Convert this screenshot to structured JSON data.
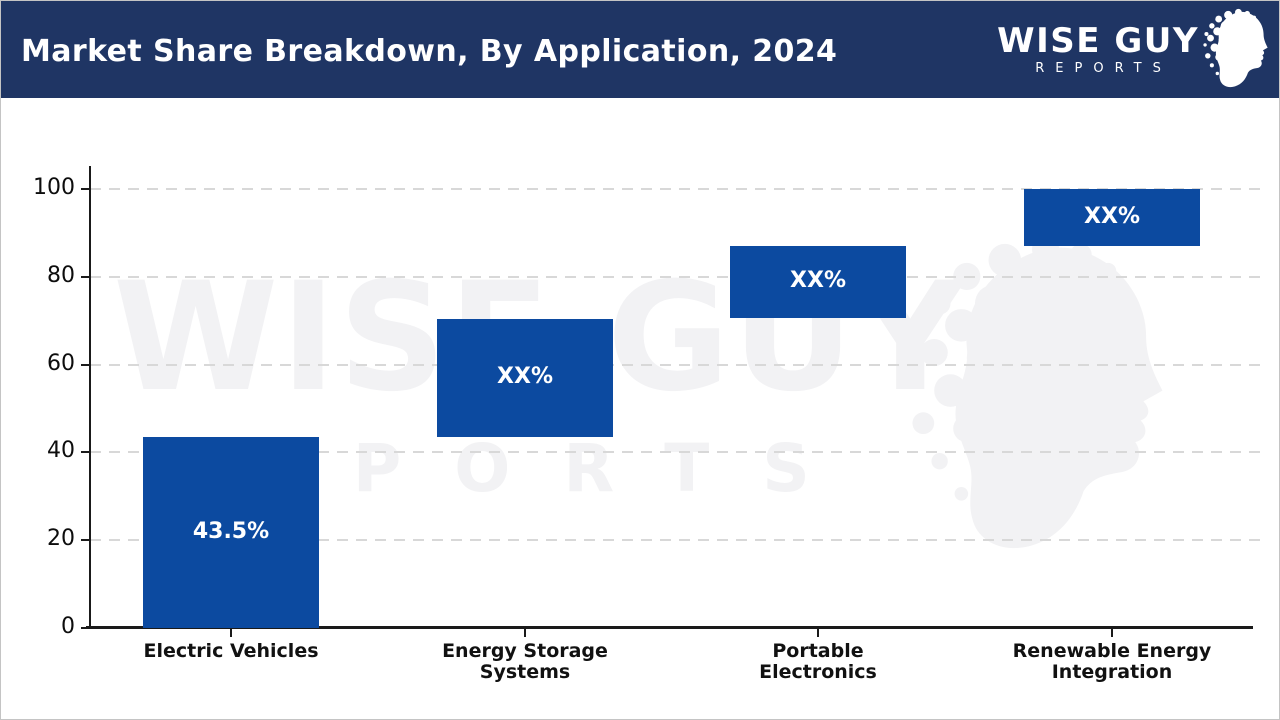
{
  "header": {
    "title": "Market Share Breakdown, By Application, 2024",
    "bg_color": "#1f3564",
    "text_color": "#ffffff",
    "logo": {
      "line1": "WISE GUY",
      "line2": "REPORTS"
    }
  },
  "watermark": {
    "line1": "WISE GUY",
    "line2": "REPORTS",
    "color": "#f2f2f4"
  },
  "chart_data": {
    "type": "bar",
    "variant": "waterfall",
    "title": "Market Share Breakdown, By Application, 2024",
    "categories": [
      [
        "Electric Vehicles"
      ],
      [
        "Energy Storage",
        "Systems"
      ],
      [
        "Portable",
        "Electronics"
      ],
      [
        "Renewable Energy",
        "Integration"
      ]
    ],
    "segments": [
      {
        "category": "Electric Vehicles",
        "start": 0,
        "end": 43.5,
        "value": 43.5,
        "label": "43.5%"
      },
      {
        "category": "Energy Storage Systems",
        "start": 43.5,
        "end": 70.5,
        "value": 27,
        "label": "XX%"
      },
      {
        "category": "Portable Electronics",
        "start": 70.5,
        "end": 87,
        "value": 16.5,
        "label": "XX%"
      },
      {
        "category": "Renewable Energy Integration",
        "start": 87,
        "end": 100,
        "value": 13,
        "label": "XX%"
      }
    ],
    "ylim": [
      0,
      100
    ],
    "yticks": [
      0,
      20,
      40,
      60,
      80,
      100
    ],
    "xlabel": "",
    "ylabel": "",
    "grid": true,
    "grid_style": "dashed",
    "legend": false,
    "bar_color": "#0c4aa0",
    "bar_label_color": "#ffffff",
    "axis_color": "#1a1a1a"
  }
}
